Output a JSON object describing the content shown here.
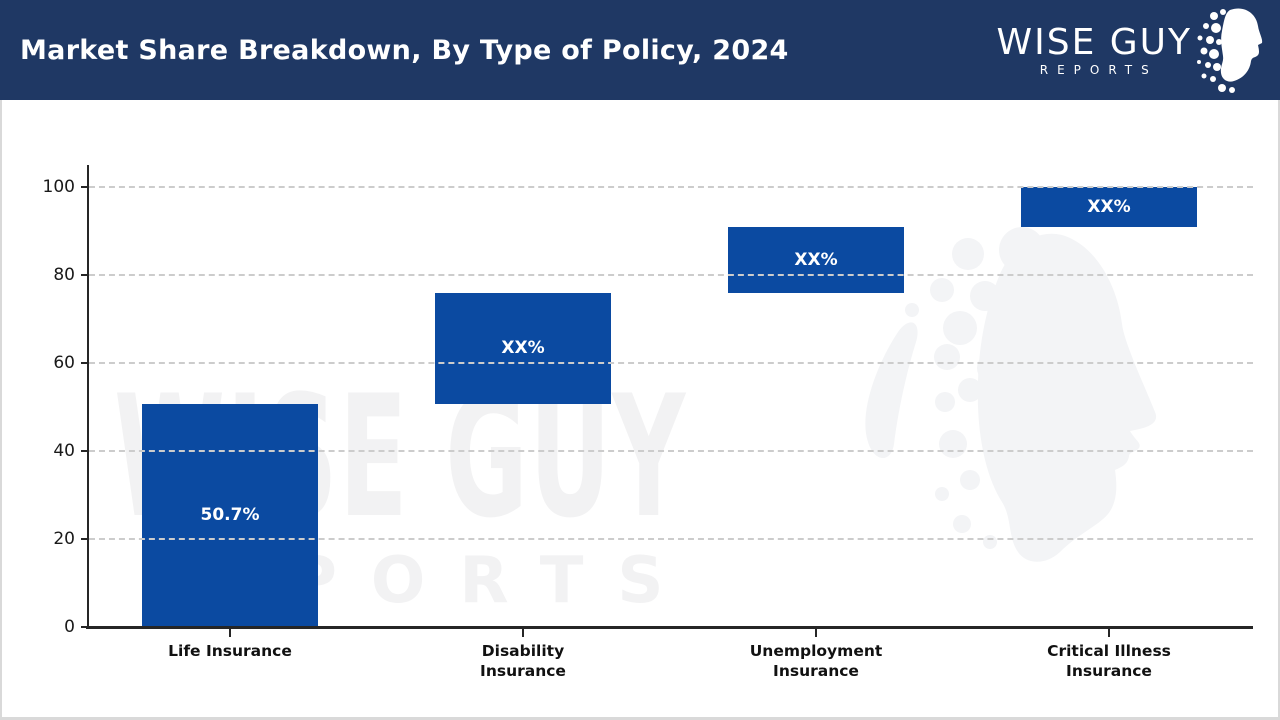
{
  "header": {
    "title": "Market Share Breakdown, By Type of Policy, 2024",
    "bg_color": "#1f3864",
    "logo": {
      "line1": "WISE GUY",
      "line2": "REPORTS"
    }
  },
  "watermark": {
    "line1": "WISE GUY",
    "line2": "PORTS"
  },
  "chart_data": {
    "type": "bar",
    "subtype": "waterfall",
    "title": "Market Share Breakdown, By Type of Policy, 2024",
    "xlabel": "",
    "ylabel": "",
    "categories": [
      "Life Insurance",
      "Disability\nInsurance",
      "Unemployment\nInsurance",
      "Critical Illness\nInsurance"
    ],
    "bars": [
      {
        "category": "Life Insurance",
        "from": 0,
        "to": 50.7,
        "label": "50.7%"
      },
      {
        "category": "Disability Insurance",
        "from": 50.7,
        "to": 75.9,
        "label": "XX%"
      },
      {
        "category": "Unemployment Insurance",
        "from": 75.9,
        "to": 91.0,
        "label": "XX%"
      },
      {
        "category": "Critical Illness Insurance",
        "from": 91.0,
        "to": 100.0,
        "label": "XX%"
      }
    ],
    "yticks": [
      0,
      20,
      40,
      60,
      80,
      100
    ],
    "ylim": [
      0,
      105
    ],
    "grid": "horizontal-dashed",
    "legend": "none",
    "bar_color": "#0b4aa1",
    "bar_label_color": "#ffffff",
    "axis_color": "#262626",
    "grid_color": "#cccccc"
  }
}
